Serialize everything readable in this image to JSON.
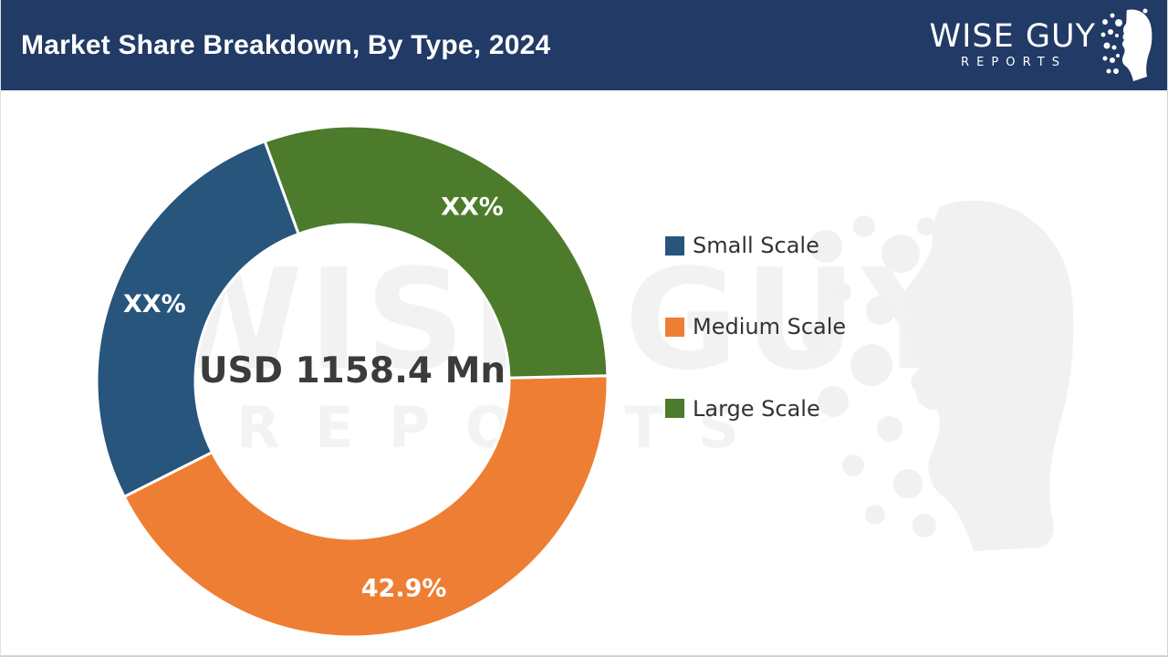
{
  "header": {
    "title": "Market Share Breakdown, By Type, 2024",
    "logo": {
      "line1": "WISE GUY",
      "line2": "REPORTS"
    }
  },
  "watermark": {
    "line1": "WISE GUY",
    "line2": "REPORTS"
  },
  "chart_data": {
    "type": "pie",
    "donut": true,
    "title": "Market Share Breakdown, By Type, 2024",
    "center_label": "USD 1158.4 Mn",
    "start_angle_deg": 110,
    "direction": "counterclockwise",
    "legend_position": "right",
    "segments": [
      {
        "name": "Small Scale",
        "display_label": "XX%",
        "label_masked": true,
        "value_pct": 26.9,
        "color": "#27557c"
      },
      {
        "name": "Medium Scale",
        "display_label": "42.9%",
        "label_masked": false,
        "value_pct": 42.9,
        "color": "#ee7e33"
      },
      {
        "name": "Large Scale",
        "display_label": "XX%",
        "label_masked": true,
        "value_pct": 30.2,
        "color": "#4c7b2b"
      }
    ]
  },
  "colors": {
    "header_bar": "#213a66",
    "watermark": "#f2f2f2",
    "separator": "#ffffff",
    "center_text": "#3b3b3b",
    "legend_text": "#333333"
  }
}
